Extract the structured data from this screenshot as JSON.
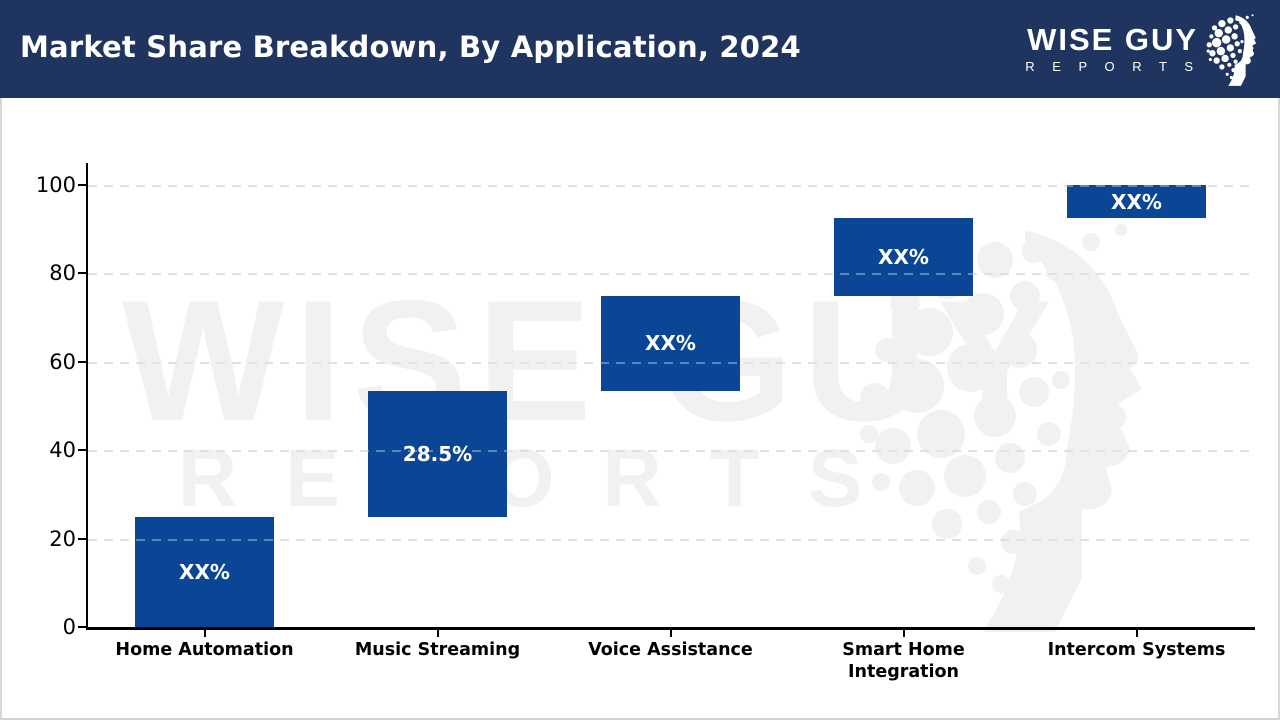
{
  "header": {
    "title": "Market Share Breakdown, By Application, 2024",
    "brand": {
      "line1": "WISE GUY",
      "line2": "R E P O R T S"
    }
  },
  "watermark": {
    "line1": "WISE GUY",
    "line2": "REPORTS"
  },
  "colors": {
    "header_bg": "#1f3560",
    "bar_fill": "#0b4696",
    "bar_label_text": "#ffffff",
    "gridline": "#d2d2d2",
    "axis": "#000000",
    "watermark": "#f1f1f1",
    "frame_border": "#d7d7d7"
  },
  "chart_data": {
    "type": "bar",
    "subtype": "waterfall",
    "title": "Market Share Breakdown, By Application, 2024",
    "xlabel": "",
    "ylabel": "",
    "categories": [
      "Home Automation",
      "Music Streaming",
      "Voice Assistance",
      "Smart Home Integration",
      "Intercom Systems"
    ],
    "segments": [
      {
        "category": "Home Automation",
        "start": 0,
        "end": 25,
        "label": "XX%"
      },
      {
        "category": "Music Streaming",
        "start": 25,
        "end": 53.5,
        "label": "28.5%"
      },
      {
        "category": "Voice Assistance",
        "start": 53.5,
        "end": 75,
        "label": "XX%"
      },
      {
        "category": "Smart Home Integration",
        "start": 75,
        "end": 92.5,
        "label": "XX%"
      },
      {
        "category": "Intercom Systems",
        "start": 92.5,
        "end": 100,
        "label": "XX%"
      }
    ],
    "yticks": [
      0,
      20,
      40,
      60,
      80,
      100
    ],
    "ylim": [
      0,
      100
    ],
    "ymax_display": 105,
    "bar_width_pct": 12,
    "grid": "horizontal dashed",
    "legend": "none"
  }
}
